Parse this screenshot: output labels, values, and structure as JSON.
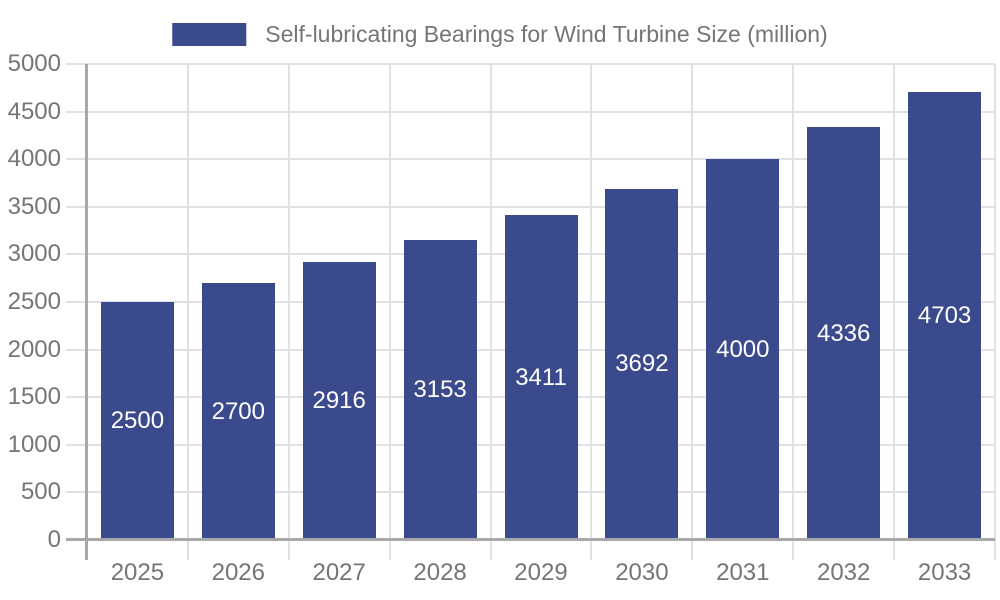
{
  "chart_data": {
    "type": "bar",
    "legend_label": "Self-lubricating Bearings for Wind Turbine Size (million)",
    "legend_position": "top-center",
    "categories": [
      "2025",
      "2026",
      "2027",
      "2028",
      "2029",
      "2030",
      "2031",
      "2032",
      "2033"
    ],
    "values": [
      2500,
      2700,
      2916,
      3153,
      3411,
      3692,
      4000,
      4336,
      4703
    ],
    "value_labels": [
      "2500",
      "2700",
      "2916",
      "3153",
      "3411",
      "3692",
      "4000",
      "4336",
      "4703"
    ],
    "value_label_position": "inside-middle",
    "ylim": [
      0,
      5000
    ],
    "ytick_step": 500,
    "yticks": [
      "0",
      "500",
      "1000",
      "1500",
      "2000",
      "2500",
      "3000",
      "3500",
      "4000",
      "4500",
      "5000"
    ],
    "grid": true,
    "colors": {
      "bar": "#3A4A8C",
      "value_label": "#FFFFFF",
      "axis_text": "#757575",
      "legend_text": "#757575",
      "grid_line": "#E1E1E5",
      "axis_line": "#A8A8AB",
      "background": "#FFFFFF"
    }
  }
}
